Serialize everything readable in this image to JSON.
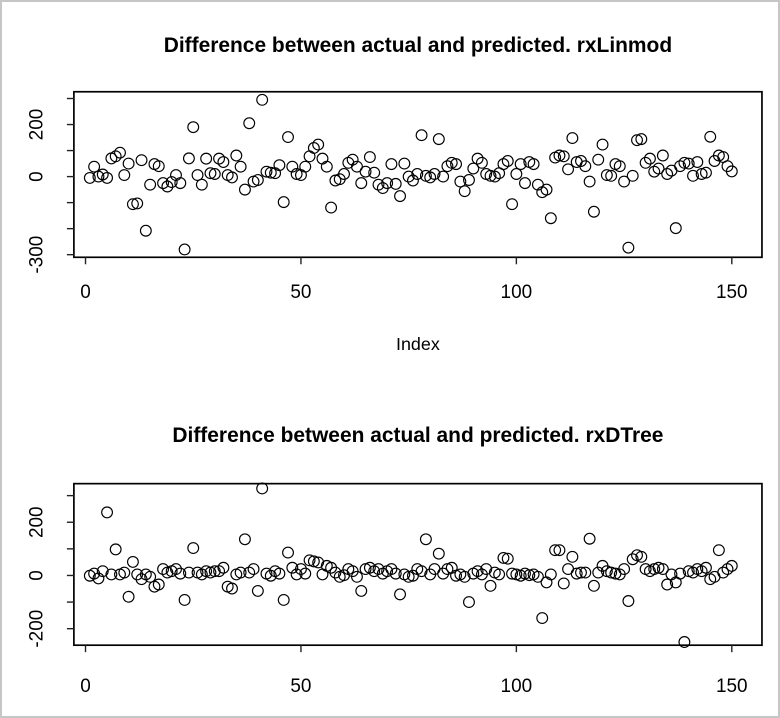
{
  "window": {
    "background": "#ffffff",
    "border_color": "#c6c6c6",
    "point_color": "#000000",
    "marker": "open-circle"
  },
  "chart_data": [
    {
      "type": "scatter",
      "title": "Difference between actual and predicted. rxLinmod",
      "xlabel": "Index",
      "x_start": 1,
      "x_ticks": [
        0,
        50,
        100,
        150
      ],
      "y_ticks": [
        300,
        200,
        100,
        0,
        -100,
        -200,
        -300
      ],
      "y_tick_labels_visible": [
        200,
        0,
        -300
      ],
      "xlim": [
        -2.7,
        157
      ],
      "ylim": [
        -310,
        326
      ],
      "grid": false,
      "legend": "none",
      "values": [
        -5,
        38,
        0,
        8,
        -5,
        70,
        78,
        92,
        6,
        50,
        -106,
        -103,
        63,
        -208,
        -31,
        48,
        40,
        -25,
        -38,
        -21,
        6,
        -25,
        -280,
        70,
        190,
        6,
        -31,
        69,
        13,
        10,
        69,
        56,
        6,
        -3,
        81,
        38,
        -50,
        205,
        -19,
        -13,
        295,
        19,
        15,
        13,
        44,
        -98,
        152,
        38,
        10,
        6,
        38,
        78,
        110,
        123,
        69,
        38,
        -119,
        -15,
        -10,
        10,
        53,
        65,
        38,
        -25,
        19,
        75,
        15,
        -31,
        -44,
        -25,
        48,
        -28,
        -75,
        50,
        0,
        -15,
        10,
        159,
        3,
        -3,
        10,
        144,
        0,
        40,
        53,
        48,
        -19,
        -56,
        -13,
        31,
        69,
        53,
        10,
        3,
        0,
        13,
        48,
        60,
        -106,
        10,
        48,
        -25,
        56,
        48,
        -31,
        -60,
        -50,
        -160,
        73,
        81,
        78,
        28,
        148,
        56,
        60,
        40,
        -19,
        -135,
        65,
        123,
        6,
        3,
        48,
        40,
        -19,
        -273,
        3,
        140,
        144,
        53,
        69,
        19,
        31,
        81,
        10,
        23,
        -198,
        40,
        53,
        50,
        3,
        56,
        10,
        15,
        153,
        60,
        81,
        75,
        40,
        20
      ]
    },
    {
      "type": "scatter",
      "title": "Difference between actual and predicted. rxDTree",
      "xlabel": "",
      "x_start": 1,
      "x_ticks": [
        0,
        50,
        100,
        150
      ],
      "y_ticks": [
        300,
        200,
        100,
        0,
        -100,
        -200
      ],
      "y_tick_labels_visible": [
        200,
        0,
        -200
      ],
      "xlim": [
        -2.7,
        157
      ],
      "ylim": [
        -262,
        345
      ],
      "grid": false,
      "legend": "none",
      "values": [
        -1,
        7,
        -11,
        16,
        237,
        4,
        98,
        4,
        11,
        -80,
        51,
        4,
        -14,
        4,
        -5,
        -42,
        -34,
        24,
        11,
        16,
        24,
        7,
        -92,
        11,
        103,
        11,
        4,
        16,
        11,
        16,
        16,
        29,
        -42,
        -49,
        4,
        11,
        136,
        11,
        24,
        -58,
        327,
        7,
        -1,
        16,
        7,
        -92,
        86,
        29,
        4,
        24,
        7,
        57,
        53,
        49,
        4,
        36,
        29,
        11,
        -5,
        1,
        24,
        16,
        -5,
        -58,
        24,
        29,
        16,
        24,
        7,
        16,
        24,
        7,
        -71,
        4,
        -5,
        -1,
        24,
        16,
        136,
        4,
        24,
        82,
        7,
        24,
        29,
        -1,
        4,
        -5,
        -100,
        7,
        16,
        4,
        24,
        -39,
        11,
        4,
        66,
        63,
        7,
        4,
        -1,
        7,
        1,
        4,
        -5,
        -160,
        -26,
        4,
        95,
        95,
        -30,
        24,
        70,
        7,
        11,
        11,
        138,
        -39,
        11,
        36,
        16,
        11,
        7,
        4,
        24,
        -96,
        61,
        76,
        70,
        24,
        16,
        24,
        29,
        24,
        -34,
        4,
        -26,
        7,
        -250,
        16,
        11,
        24,
        16,
        29,
        -14,
        -5,
        95,
        11,
        24,
        36
      ]
    }
  ]
}
